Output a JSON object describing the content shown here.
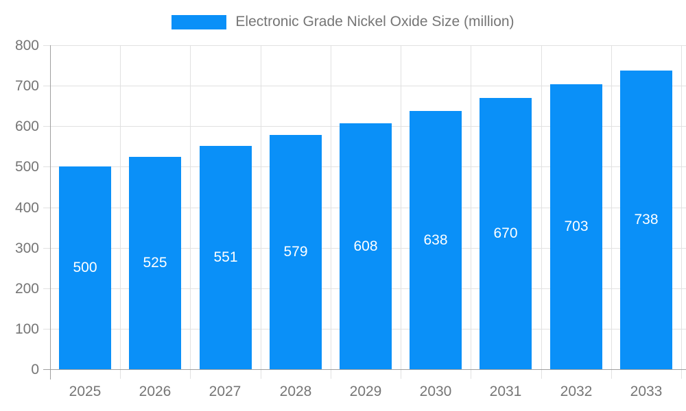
{
  "chart_data": {
    "type": "bar",
    "title": "Electronic Grade Nickel Oxide Size (million)",
    "legend_entries": [
      "Electronic Grade Nickel Oxide Size (million)"
    ],
    "legend_position": "top-center",
    "categories": [
      "2025",
      "2026",
      "2027",
      "2028",
      "2029",
      "2030",
      "2031",
      "2032",
      "2033"
    ],
    "values": [
      500,
      525,
      551,
      579,
      608,
      638,
      670,
      703,
      738
    ],
    "bar_value_labels": [
      "500",
      "525",
      "551",
      "579",
      "608",
      "638",
      "670",
      "703",
      "738"
    ],
    "xlabel": "",
    "ylabel": "",
    "ylim": [
      0,
      800
    ],
    "y_tick_step": 100,
    "y_tick_labels": [
      "0",
      "100",
      "200",
      "300",
      "400",
      "500",
      "600",
      "700",
      "800"
    ],
    "grid": true,
    "bar_labels_inside": true
  },
  "colors": {
    "bar": "#0a90f8",
    "bar_value_label": "#ffffff",
    "axis_text": "#757575",
    "grid_line": "#e1e1e1",
    "axis_line": "#9e9e9e",
    "background": "#ffffff"
  }
}
